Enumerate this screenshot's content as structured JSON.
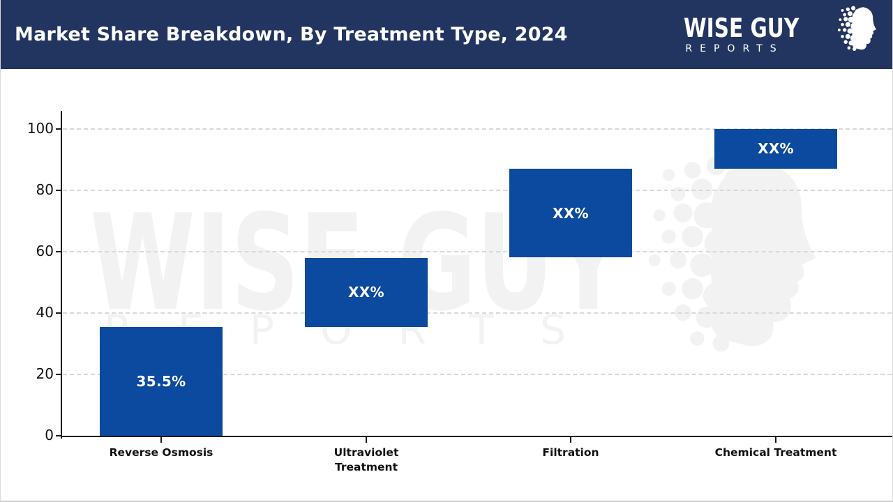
{
  "header": {
    "brand": {
      "line1": "WISE GUY",
      "line2": "REPORTS"
    }
  },
  "watermark": {
    "line1": "WISE GUY",
    "line2": "REPORTS"
  },
  "colors": {
    "header_bg": "#213560",
    "bar": "#0b4a9e",
    "bar_label": "#ffffff",
    "watermark": "#f2f2f2",
    "grid": "#d8d8d8",
    "axis": "#1a1a1a"
  },
  "chart_data": {
    "type": "bar",
    "subtype": "floating-waterfall",
    "title": "Market Share Breakdown, By Treatment Type, 2024",
    "categories": [
      "Reverse Osmosis",
      "Ultraviolet\nTreatment",
      "Filtration",
      "Chemical Treatment"
    ],
    "series": [
      {
        "name": "Market Share",
        "segments": [
          {
            "category": "Reverse Osmosis",
            "start": 0,
            "end": 35.5,
            "label": "35.5%"
          },
          {
            "category": "Ultraviolet Treatment",
            "start": 35.5,
            "end": 58,
            "label": "XX%"
          },
          {
            "category": "Filtration",
            "start": 58,
            "end": 87,
            "label": "XX%"
          },
          {
            "category": "Chemical Treatment",
            "start": 87,
            "end": 100,
            "label": "XX%"
          }
        ]
      }
    ],
    "xlabel": "",
    "ylabel": "",
    "ylim": [
      0,
      100
    ],
    "yticks": [
      0,
      20,
      40,
      60,
      80,
      100
    ],
    "grid": {
      "horizontal": true,
      "style": "dashed"
    },
    "legend": "none",
    "bar_color": "#0b4a9e",
    "bar_label_color": "#ffffff"
  }
}
